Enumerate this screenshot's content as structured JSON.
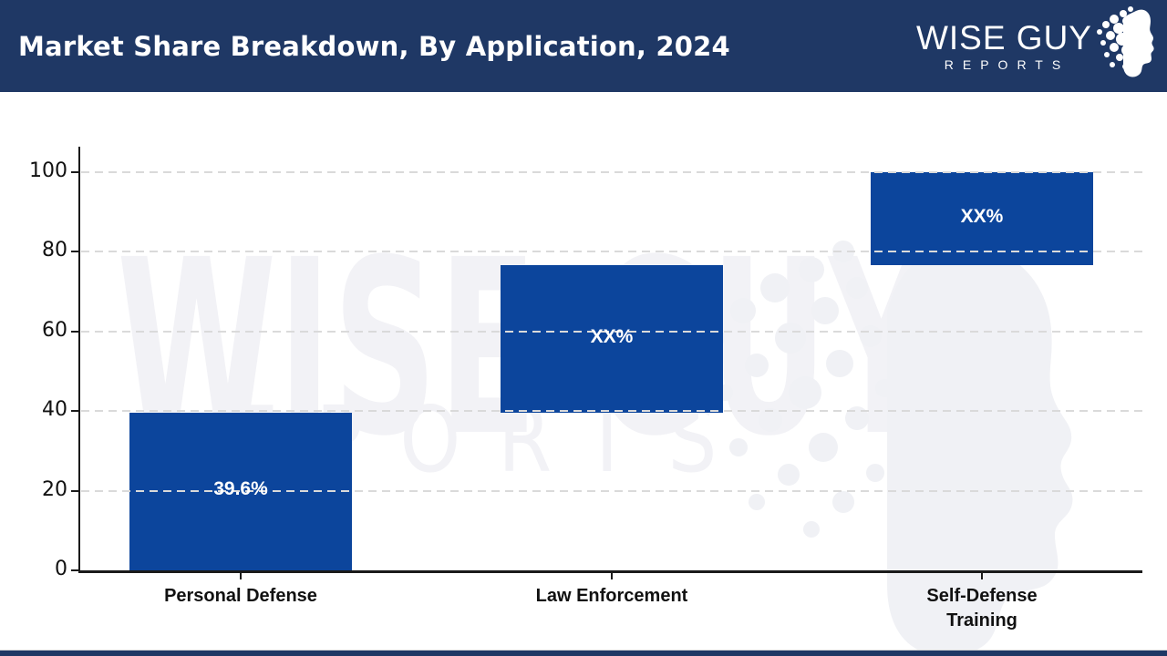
{
  "header": {
    "bg_color": "#1f3865",
    "title": "Market Share Breakdown, By Application, 2024",
    "logo": {
      "wordmark": "WISE GUY",
      "subtext": "REPORTS"
    }
  },
  "watermark": {
    "wordmark": "WISE GUY",
    "subtext": "REPORTS"
  },
  "chart_data": {
    "type": "bar",
    "subtype": "waterfall",
    "title": "Market Share Breakdown, By Application, 2024",
    "categories": [
      "Personal Defense",
      "Law Enforcement",
      "Self-Defense Training"
    ],
    "category_label_lines": [
      [
        "Personal Defense"
      ],
      [
        "Law Enforcement"
      ],
      [
        "Self-Defense",
        "Training"
      ]
    ],
    "series": [
      {
        "name": "Market share (%)",
        "segments": [
          {
            "category": "Personal Defense",
            "start": 0,
            "end": 39.6,
            "label": "39.6%"
          },
          {
            "category": "Law Enforcement",
            "start": 39.6,
            "end": 76.5,
            "label": "XX%"
          },
          {
            "category": "Self-Defense Training",
            "start": 76.5,
            "end": 100,
            "label": "XX%"
          }
        ]
      }
    ],
    "xlabel": "",
    "ylabel": "",
    "ylim": [
      0,
      106
    ],
    "yticks": [
      0,
      20,
      40,
      60,
      80,
      100
    ],
    "grid": {
      "axis": "y",
      "style": "dashed",
      "on_top": true
    },
    "legend": "none",
    "colors": {
      "bar": "#0c459c",
      "bar_label": "#ffffff",
      "axis": "#1a1a1a",
      "grid": "#dadada",
      "tick_label": "#111111"
    }
  },
  "footer": {
    "bg_color": "#1f3865"
  }
}
